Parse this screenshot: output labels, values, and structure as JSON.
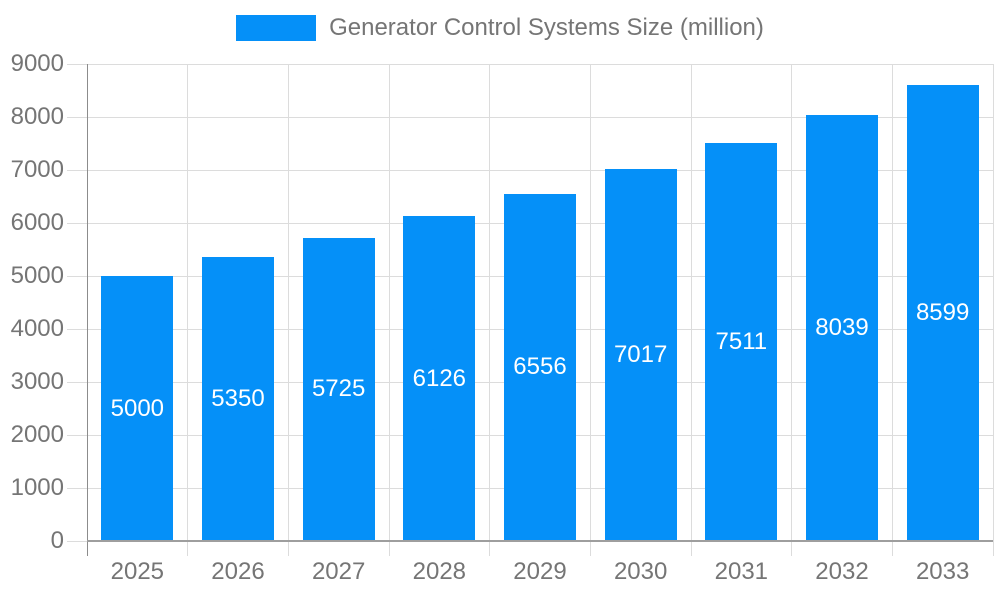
{
  "chart_data": {
    "type": "bar",
    "title": "Generator Control Systems Size (million)",
    "legend": {
      "label": "Generator Control Systems Size (million)",
      "position": "top"
    },
    "categories": [
      "2025",
      "2026",
      "2027",
      "2028",
      "2029",
      "2030",
      "2031",
      "2032",
      "2033"
    ],
    "series": [
      {
        "name": "Generator Control Systems Size (million)",
        "values": [
          5000,
          5350,
          5725,
          6126,
          6556,
          7017,
          7511,
          8039,
          8599
        ]
      }
    ],
    "xlabel": "",
    "ylabel": "",
    "ylim": [
      0,
      9000
    ],
    "ytick_step": 1000,
    "yticks": [
      0,
      1000,
      2000,
      3000,
      4000,
      5000,
      6000,
      7000,
      8000,
      9000
    ],
    "grid": true,
    "value_labels_shown": true,
    "colors": {
      "bar": "#0590f8",
      "value_label": "#ffffff",
      "axis_label": "#757575",
      "legend_label": "#757575",
      "gridline": "#dcdcdc",
      "axis_line": "#8c8c8c",
      "baseline": "#9e9e9e",
      "background": "#ffffff"
    }
  }
}
